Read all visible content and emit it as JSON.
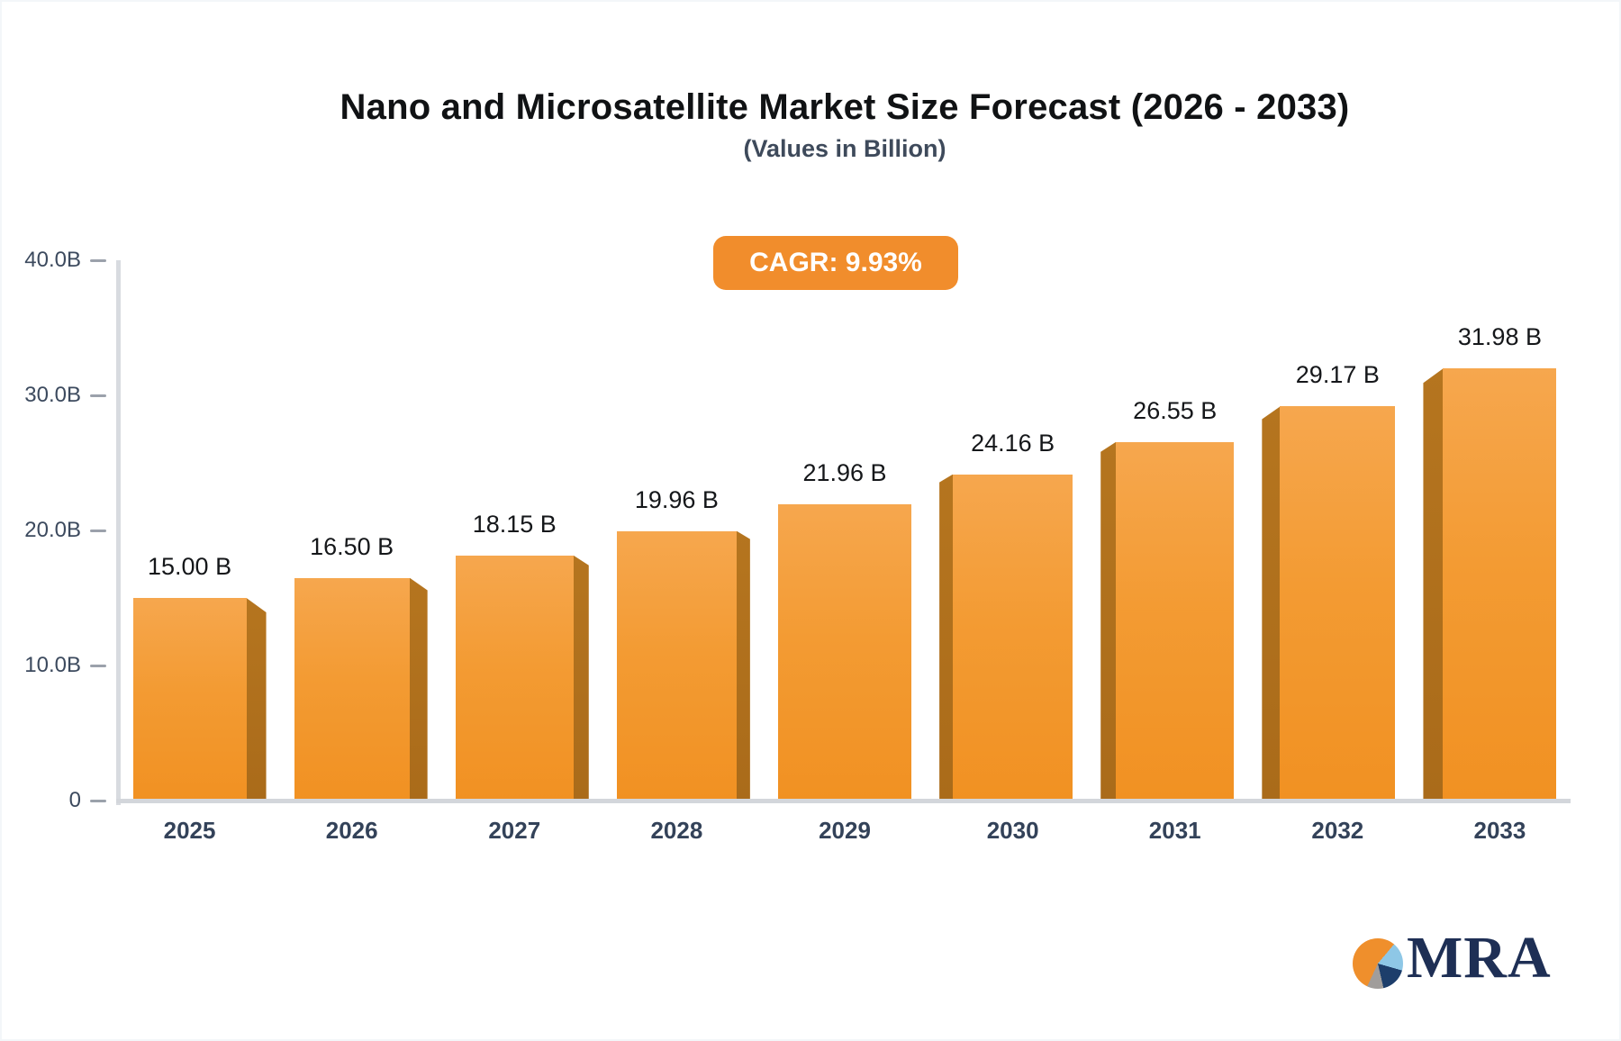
{
  "chart_data": {
    "type": "bar",
    "title": "Nano and Microsatellite Market Size Forecast (2026 - 2033)",
    "subtitle": "(Values in Billion)",
    "annotation": "CAGR: 9.93%",
    "categories": [
      "2025",
      "2026",
      "2027",
      "2028",
      "2029",
      "2030",
      "2031",
      "2032",
      "2033"
    ],
    "values": [
      15.0,
      16.5,
      18.15,
      19.96,
      21.96,
      24.16,
      26.55,
      29.17,
      31.98
    ],
    "value_labels": [
      "15.00 B",
      "16.50 B",
      "18.15 B",
      "19.96 B",
      "21.96 B",
      "24.16 B",
      "26.55 B",
      "29.17 B",
      "31.98 B"
    ],
    "y_ticks": [
      {
        "value": 40,
        "label": "40.0B"
      },
      {
        "value": 30,
        "label": "30.0B"
      },
      {
        "value": 20,
        "label": "20.0B"
      },
      {
        "value": 10,
        "label": "10.0B"
      },
      {
        "value": 0,
        "label": "0"
      }
    ],
    "ylim": [
      0,
      40
    ],
    "xlabel": "",
    "ylabel": "",
    "grid": false,
    "legend_position": "none",
    "colors": {
      "bar_top": "#f6a74e",
      "bar_bottom": "#f19122",
      "bar_side_3d": "#b0701d",
      "badge_bg": "#f18d2c",
      "badge_text": "#ffffff",
      "axis_line": "#d8dbe0",
      "tick_text": "#3c4a5e",
      "value_label_text": "#15171a"
    }
  },
  "logo": {
    "text": "MRA",
    "text_color": "#1e2f55",
    "pie_colors": [
      "#ef8f2c",
      "#8ec7e6",
      "#1d3e6b",
      "#a09d9b"
    ]
  }
}
